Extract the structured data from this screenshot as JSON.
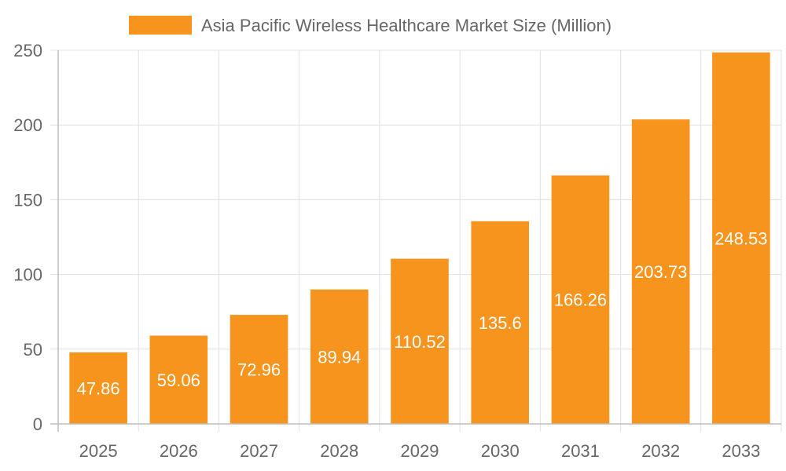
{
  "chart_data": {
    "type": "bar",
    "title": "",
    "xlabel": "",
    "ylabel": "",
    "categories": [
      "2025",
      "2026",
      "2027",
      "2028",
      "2029",
      "2030",
      "2031",
      "2032",
      "2033"
    ],
    "series": [
      {
        "name": "Asia Pacific Wireless Healthcare Market Size (Million)",
        "values": [
          47.86,
          59.06,
          72.96,
          89.94,
          110.52,
          135.6,
          166.26,
          203.73,
          248.53
        ],
        "color": "#f7941d"
      }
    ],
    "ylim": [
      0,
      250
    ],
    "yticks": [
      0,
      50,
      100,
      150,
      200,
      250
    ],
    "grid": true,
    "legend_position": "top-center",
    "data_labels": "inside-center-white"
  }
}
